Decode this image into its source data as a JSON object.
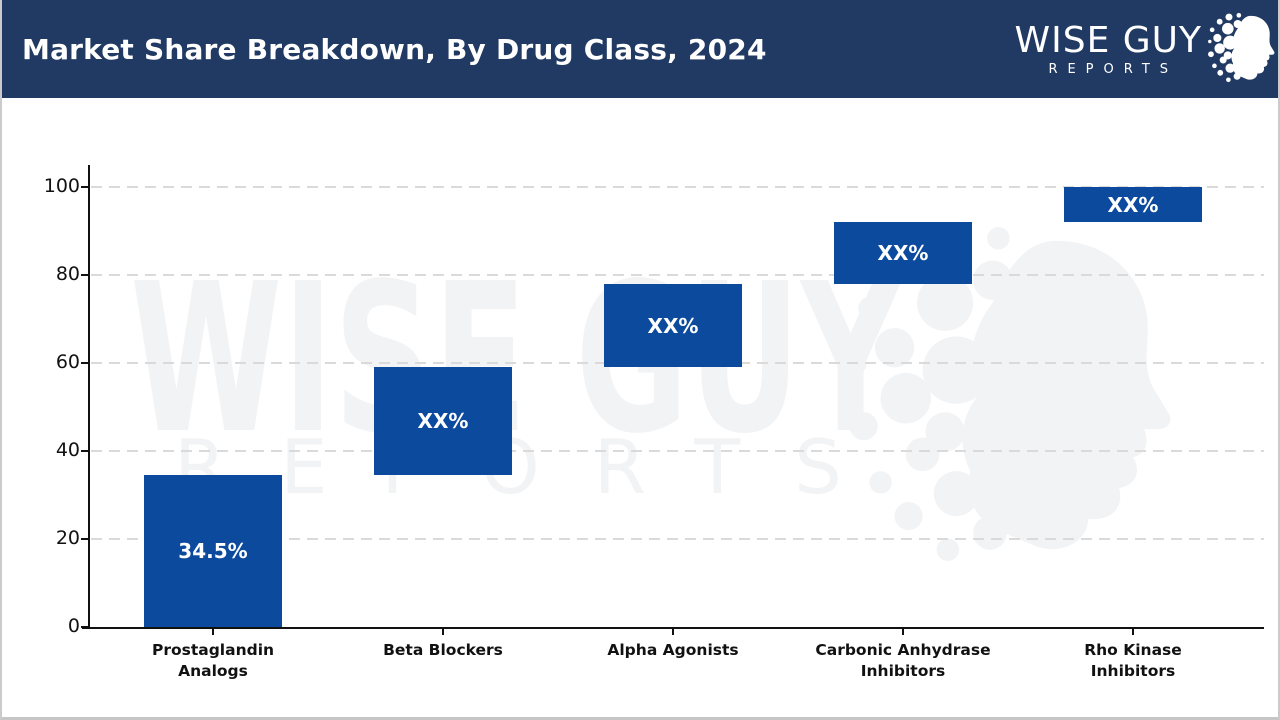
{
  "header": {
    "title": "Market Share Breakdown, By Drug Class, 2024",
    "logo": {
      "name": "WISE GUY",
      "sub": "REPORTS"
    }
  },
  "watermark": {
    "name": "WISE GUY",
    "sub": "REPORTS"
  },
  "chart_data": {
    "type": "bar",
    "subtype": "waterfall",
    "title": "Market Share Breakdown, By Drug Class, 2024",
    "categories": [
      "Prostaglandin\nAnalogs",
      "Beta Blockers",
      "Alpha Agonists",
      "Carbonic Anhydrase\nInhibitors",
      "Rho Kinase\nInhibitors"
    ],
    "series": [
      {
        "name": "Market share (%)",
        "segments": [
          {
            "category": "Prostaglandin Analogs",
            "start": 0,
            "end": 34.5,
            "label": "34.5%"
          },
          {
            "category": "Beta Blockers",
            "start": 34.5,
            "end": 59,
            "label": "XX%"
          },
          {
            "category": "Alpha Agonists",
            "start": 59,
            "end": 78,
            "label": "XX%"
          },
          {
            "category": "Carbonic Anhydrase Inhibitors",
            "start": 78,
            "end": 92,
            "label": "XX%"
          },
          {
            "category": "Rho Kinase Inhibitors",
            "start": 92,
            "end": 100,
            "label": "XX%"
          }
        ]
      }
    ],
    "yticks": [
      0,
      20,
      40,
      60,
      80,
      100
    ],
    "ylim": [
      0,
      105
    ],
    "xlabel": "",
    "ylabel": "",
    "grid": "horizontal-dashed",
    "legend": "none",
    "bar_color": "#0c4a9e",
    "bar_label_color": "#ffffff",
    "axis_color": "#111111"
  },
  "colors": {
    "header_bg": "#213a63",
    "header_text": "#ffffff",
    "bar": "#0c4a9e",
    "grid": "#dadada",
    "watermark": "#f2f3f5",
    "page_border": "#cbcbcb"
  }
}
